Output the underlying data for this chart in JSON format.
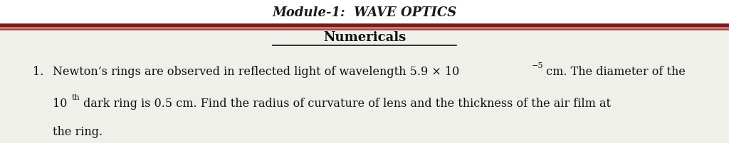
{
  "bg_color": "#f0f0eb",
  "header_bg": "#ffffff",
  "header_text": "Module-1:  WAVE OPTICS",
  "header_text_color": "#1a1a1a",
  "bar_color_top": "#7a1a1a",
  "bar_color_bottom": "#b04040",
  "section_title": "Numericals",
  "item1_line1_main": "Newton’s rings are observed in reflected light of wavelength 5.9 × 10",
  "item1_exp": "−5",
  "item1_line1_end": " cm. The diameter of the",
  "item1_line2_pre": "10",
  "item1_line2_sup": "th",
  "item1_line2_end": " dark ring is 0.5 cm. Find the radius of curvature of lens and the thickness of the air film at",
  "item1_line3": "the ring.",
  "font_size_header": 13,
  "font_size_body": 11.5,
  "font_size_super": 8
}
